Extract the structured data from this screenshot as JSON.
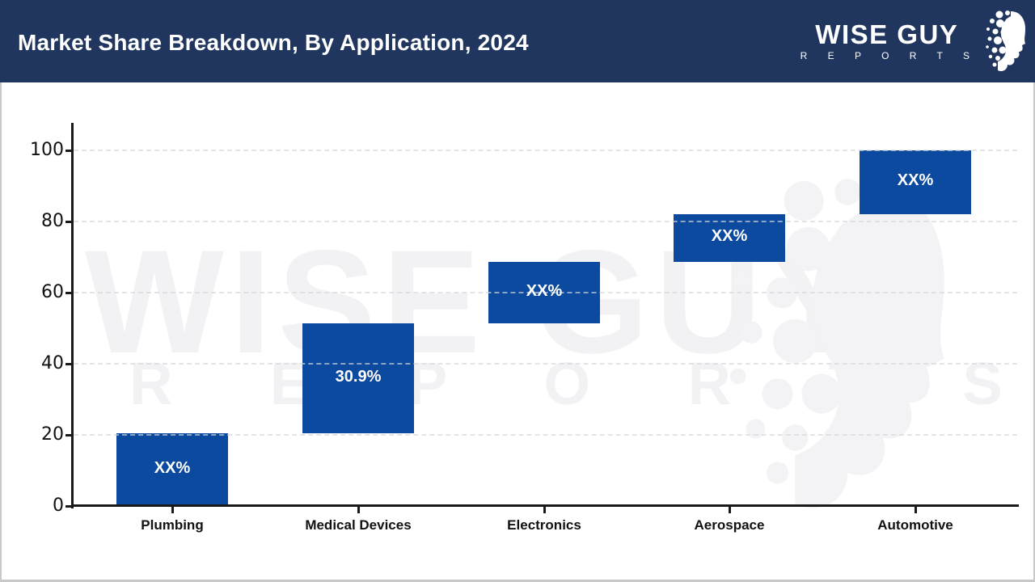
{
  "header": {
    "title": "Market Share Breakdown, By Application, 2024",
    "logo_line1": "WISE GUY",
    "logo_line2": "R E P O R T S"
  },
  "watermark": {
    "line1": "WISE GUY",
    "line2": "R E P O R T S"
  },
  "colors": {
    "header_bg": "#21365f",
    "bar_blue": "#0b4a9e",
    "gridline": "#e0e0e0",
    "axis": "#1a1a1a",
    "page_border": "#c9c9c9",
    "watermark": "#f2f2f5",
    "bar_label": "#ffffff"
  },
  "chart_data": {
    "type": "bar",
    "subtype": "waterfall",
    "title": "Market Share Breakdown, By Application, 2024",
    "categories": [
      "Plumbing",
      "Medical Devices",
      "Electronics",
      "Aerospace",
      "Automotive"
    ],
    "segments": [
      {
        "category": "Plumbing",
        "start": 0,
        "end": 20.5,
        "label": "XX%"
      },
      {
        "category": "Medical Devices",
        "start": 20.5,
        "end": 51.4,
        "label": "30.9%",
        "value": 30.9
      },
      {
        "category": "Electronics",
        "start": 51.4,
        "end": 68.6,
        "label": "XX%"
      },
      {
        "category": "Aerospace",
        "start": 68.6,
        "end": 82.1,
        "label": "XX%"
      },
      {
        "category": "Automotive",
        "start": 82.1,
        "end": 100,
        "label": "XX%"
      }
    ],
    "yticks": [
      0,
      20,
      40,
      60,
      80,
      100
    ],
    "ylim": [
      0,
      107
    ],
    "xlabel": "",
    "ylabel": "",
    "grid": "horizontal-dashed-over-bars",
    "legend": "none"
  }
}
